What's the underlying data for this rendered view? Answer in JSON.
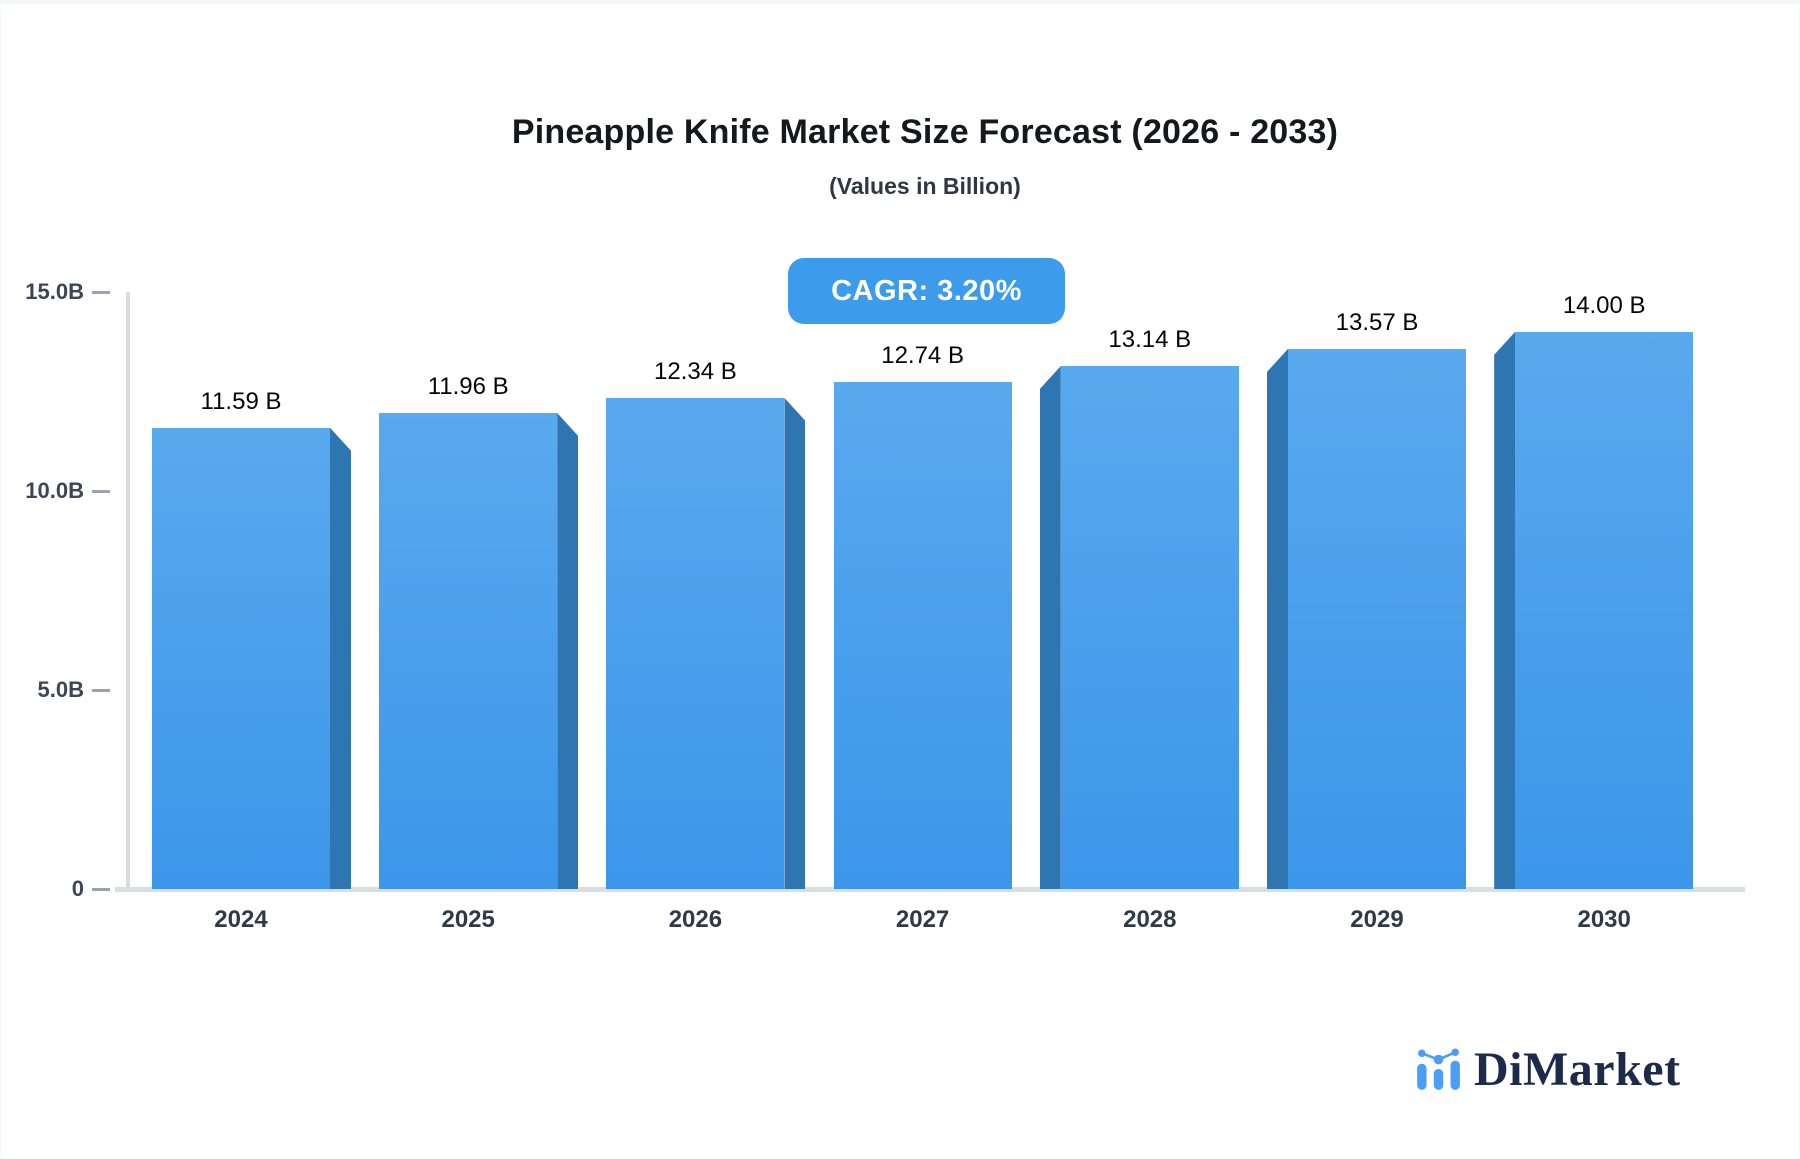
{
  "header": {
    "title": "Pineapple Knife Market Size Forecast (2026 - 2033)",
    "subtitle": "(Values in Billion)"
  },
  "badge": {
    "label": "CAGR: 3.20%",
    "color": "#3d9bec"
  },
  "chart_data": {
    "type": "bar",
    "title": "Pineapple Knife Market Size Forecast (2026 - 2033)",
    "subtitle": "(Values in Billion)",
    "categories": [
      "2024",
      "2025",
      "2026",
      "2027",
      "2028",
      "2029",
      "2030"
    ],
    "values": [
      11.59,
      11.96,
      12.34,
      12.74,
      13.14,
      13.57,
      14.0
    ],
    "value_labels": [
      "11.59 B",
      "11.96 B",
      "12.34 B",
      "12.74 B",
      "13.14 B",
      "13.57 B",
      "14.00 B"
    ],
    "xlabel": "",
    "ylabel": "",
    "ylim": [
      0,
      15
    ],
    "yticks": [
      {
        "value": 15,
        "label": "15.0B"
      },
      {
        "value": 10,
        "label": "10.0B"
      },
      {
        "value": 5,
        "label": "5.0B"
      },
      {
        "value": 0,
        "label": "0"
      }
    ],
    "grid": false,
    "legend": false,
    "annotation": "CAGR: 3.20%",
    "bar_style": "pseudo-3d-perspective",
    "colors": {
      "bar_face_top": "#59a9ee",
      "bar_face_bottom": "#3c96ea",
      "bar_side": "#2e76b2",
      "axis_line": "#d9dce1",
      "tick_label": "#3d4654",
      "value_label": "#050505"
    }
  },
  "logo": {
    "text": "DiMarket",
    "icon": "mini-bar-chart-icon",
    "icon_color": "#4a9ff4",
    "text_color": "#1c2b4a"
  }
}
